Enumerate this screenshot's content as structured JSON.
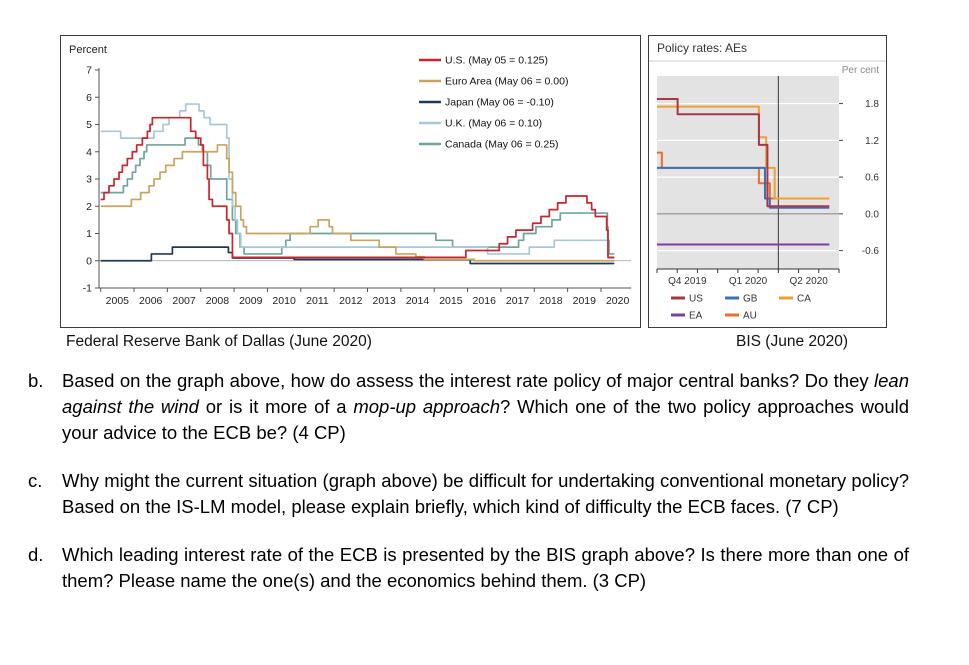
{
  "figures": {
    "left": {
      "caption": "Federal Reserve Bank of Dallas (June 2020)"
    },
    "right": {
      "caption": "BIS (June 2020)"
    }
  },
  "questions": [
    {
      "label": "b.",
      "segments": [
        {
          "text": "Based on the graph above, how do assess the interest rate policy of major central banks? Do they ",
          "italic": false
        },
        {
          "text": "lean against the wind",
          "italic": true
        },
        {
          "text": " or is it more of a ",
          "italic": false
        },
        {
          "text": "mop-up approach",
          "italic": true
        },
        {
          "text": "? Which one of the two policy approaches would your advice to the ECB be? (4 CP)",
          "italic": false
        }
      ]
    },
    {
      "label": "c.",
      "segments": [
        {
          "text": "Why might the current situation (graph above) be difficult for undertaking conventional monetary policy? Based on the IS-LM model, please explain briefly, which kind of difficulty the ECB faces. (7 CP)",
          "italic": false
        }
      ]
    },
    {
      "label": "d.",
      "segments": [
        {
          "text": "Which leading interest rate of the ECB is presented by the BIS graph above? Is there more than one of them? Please name the one(s) and the economics behind them. (3 CP)",
          "italic": false
        }
      ]
    }
  ],
  "chart_data": [
    {
      "type": "line",
      "step": true,
      "title": "",
      "ylabel": "Percent",
      "xlabel": "",
      "x_range": [
        2004.95,
        2020.9
      ],
      "y_range": [
        -1,
        7
      ],
      "x_end": 2020.4,
      "y_ticks": [
        7,
        6,
        5,
        4,
        3,
        2,
        1,
        0,
        -1
      ],
      "x_ticks": [
        2005,
        2006,
        2007,
        2008,
        2009,
        2010,
        2011,
        2012,
        2013,
        2014,
        2015,
        2016,
        2017,
        2018,
        2019,
        2020
      ],
      "legend_position": "top-right-inside",
      "grid": false,
      "series": [
        {
          "name": "U.S. (May 05 = 0.125)",
          "color": "#c8252c",
          "points": [
            [
              2005.0,
              2.25
            ],
            [
              2005.1,
              2.5
            ],
            [
              2005.25,
              2.75
            ],
            [
              2005.4,
              3.0
            ],
            [
              2005.55,
              3.25
            ],
            [
              2005.65,
              3.5
            ],
            [
              2005.8,
              3.75
            ],
            [
              2005.95,
              4.0
            ],
            [
              2006.08,
              4.25
            ],
            [
              2006.25,
              4.5
            ],
            [
              2006.4,
              4.75
            ],
            [
              2006.48,
              5.0
            ],
            [
              2006.55,
              5.25
            ],
            [
              2007.7,
              4.75
            ],
            [
              2007.85,
              4.5
            ],
            [
              2008.0,
              4.25
            ],
            [
              2008.08,
              3.5
            ],
            [
              2008.2,
              3.0
            ],
            [
              2008.25,
              2.25
            ],
            [
              2008.35,
              2.0
            ],
            [
              2008.78,
              1.5
            ],
            [
              2008.85,
              1.0
            ],
            [
              2008.95,
              0.125
            ],
            [
              2015.95,
              0.375
            ],
            [
              2016.95,
              0.625
            ],
            [
              2017.2,
              0.875
            ],
            [
              2017.45,
              1.125
            ],
            [
              2017.95,
              1.375
            ],
            [
              2018.2,
              1.625
            ],
            [
              2018.45,
              1.875
            ],
            [
              2018.7,
              2.125
            ],
            [
              2018.95,
              2.375
            ],
            [
              2019.58,
              2.125
            ],
            [
              2019.72,
              1.875
            ],
            [
              2019.83,
              1.625
            ],
            [
              2020.17,
              1.125
            ],
            [
              2020.21,
              0.125
            ]
          ]
        },
        {
          "name": "Euro Area (May 06 = 0.00)",
          "color": "#c9a35f",
          "points": [
            [
              2005.0,
              2.0
            ],
            [
              2005.92,
              2.25
            ],
            [
              2006.2,
              2.5
            ],
            [
              2006.45,
              2.75
            ],
            [
              2006.6,
              3.0
            ],
            [
              2006.78,
              3.25
            ],
            [
              2006.95,
              3.5
            ],
            [
              2007.2,
              3.75
            ],
            [
              2007.45,
              4.0
            ],
            [
              2008.5,
              4.25
            ],
            [
              2008.78,
              3.75
            ],
            [
              2008.85,
              3.25
            ],
            [
              2008.95,
              2.5
            ],
            [
              2009.05,
              2.0
            ],
            [
              2009.2,
              1.5
            ],
            [
              2009.28,
              1.25
            ],
            [
              2009.37,
              1.0
            ],
            [
              2011.28,
              1.25
            ],
            [
              2011.52,
              1.5
            ],
            [
              2011.85,
              1.25
            ],
            [
              2011.95,
              1.0
            ],
            [
              2012.5,
              0.75
            ],
            [
              2013.35,
              0.5
            ],
            [
              2013.85,
              0.25
            ],
            [
              2014.45,
              0.15
            ],
            [
              2014.7,
              0.05
            ],
            [
              2016.2,
              0.0
            ]
          ]
        },
        {
          "name": "Japan (May 06 = -0.10)",
          "color": "#203a54",
          "points": [
            [
              2005.0,
              0.0
            ],
            [
              2006.52,
              0.25
            ],
            [
              2007.15,
              0.5
            ],
            [
              2008.83,
              0.3
            ],
            [
              2008.95,
              0.1
            ],
            [
              2010.8,
              0.05
            ],
            [
              2016.08,
              -0.1
            ]
          ]
        },
        {
          "name": "U.K. (May 06 = 0.10)",
          "color": "#a9c7d9",
          "points": [
            [
              2005.0,
              4.75
            ],
            [
              2005.6,
              4.5
            ],
            [
              2006.6,
              4.75
            ],
            [
              2006.87,
              5.0
            ],
            [
              2007.05,
              5.25
            ],
            [
              2007.37,
              5.5
            ],
            [
              2007.55,
              5.75
            ],
            [
              2007.95,
              5.5
            ],
            [
              2008.1,
              5.25
            ],
            [
              2008.28,
              5.0
            ],
            [
              2008.78,
              4.5
            ],
            [
              2008.85,
              3.0
            ],
            [
              2008.95,
              2.0
            ],
            [
              2009.03,
              1.5
            ],
            [
              2009.1,
              1.0
            ],
            [
              2009.2,
              0.5
            ],
            [
              2016.6,
              0.25
            ],
            [
              2017.85,
              0.5
            ],
            [
              2018.6,
              0.75
            ],
            [
              2020.21,
              0.1
            ]
          ]
        },
        {
          "name": "Canada (May 06 = 0.25)",
          "color": "#6ea59d",
          "points": [
            [
              2005.0,
              2.5
            ],
            [
              2005.68,
              2.75
            ],
            [
              2005.8,
              3.0
            ],
            [
              2005.95,
              3.25
            ],
            [
              2006.05,
              3.5
            ],
            [
              2006.18,
              3.75
            ],
            [
              2006.3,
              4.0
            ],
            [
              2006.38,
              4.25
            ],
            [
              2007.53,
              4.5
            ],
            [
              2007.93,
              4.25
            ],
            [
              2008.05,
              4.0
            ],
            [
              2008.2,
              3.5
            ],
            [
              2008.3,
              3.0
            ],
            [
              2008.78,
              2.25
            ],
            [
              2008.95,
              1.5
            ],
            [
              2009.05,
              1.0
            ],
            [
              2009.18,
              0.5
            ],
            [
              2009.3,
              0.25
            ],
            [
              2010.43,
              0.5
            ],
            [
              2010.55,
              0.75
            ],
            [
              2010.68,
              1.0
            ],
            [
              2015.05,
              0.75
            ],
            [
              2015.55,
              0.5
            ],
            [
              2017.53,
              0.75
            ],
            [
              2017.68,
              1.0
            ],
            [
              2018.05,
              1.25
            ],
            [
              2018.53,
              1.5
            ],
            [
              2018.78,
              1.75
            ],
            [
              2020.19,
              1.25
            ],
            [
              2020.21,
              0.75
            ],
            [
              2020.24,
              0.25
            ]
          ]
        }
      ]
    },
    {
      "type": "line",
      "step": true,
      "title": "Policy rates: AEs",
      "ylabel": "Per cent",
      "x_range": [
        2019.75,
        2020.5
      ],
      "y_range": [
        -0.9,
        2.25
      ],
      "x_end": 2020.46,
      "y_ticks": [
        1.8,
        1.2,
        0.6,
        0.0,
        -0.6
      ],
      "x_tick_labels": [
        "Q4 2019",
        "Q1 2020",
        "Q2 2020"
      ],
      "x_tick_positions": [
        2019.875,
        2020.125,
        2020.375
      ],
      "plot_background": "#e3e3e3",
      "event_line_x": 2020.25,
      "legend_position": "below",
      "legend_rows": [
        [
          "US",
          "GB",
          "CA"
        ],
        [
          "EA",
          "AU"
        ]
      ],
      "series": [
        {
          "name": "US",
          "color": "#a93546",
          "points": [
            [
              2019.75,
              1.875
            ],
            [
              2019.835,
              1.625
            ],
            [
              2020.17,
              1.125
            ],
            [
              2020.205,
              0.125
            ]
          ]
        },
        {
          "name": "GB",
          "color": "#3a70b5",
          "points": [
            [
              2019.75,
              0.75
            ],
            [
              2020.195,
              0.25
            ],
            [
              2020.215,
              0.1
            ]
          ]
        },
        {
          "name": "CA",
          "color": "#f0a030",
          "points": [
            [
              2019.75,
              1.75
            ],
            [
              2020.17,
              1.25
            ],
            [
              2020.2,
              0.75
            ],
            [
              2020.235,
              0.25
            ]
          ]
        },
        {
          "name": "EA",
          "color": "#7b3f9d",
          "points": [
            [
              2019.75,
              -0.5
            ]
          ]
        },
        {
          "name": "AU",
          "color": "#e8702a",
          "points": [
            [
              2019.75,
              1.0
            ],
            [
              2019.77,
              0.75
            ],
            [
              2020.17,
              0.5
            ],
            [
              2020.215,
              0.25
            ]
          ]
        }
      ]
    }
  ]
}
